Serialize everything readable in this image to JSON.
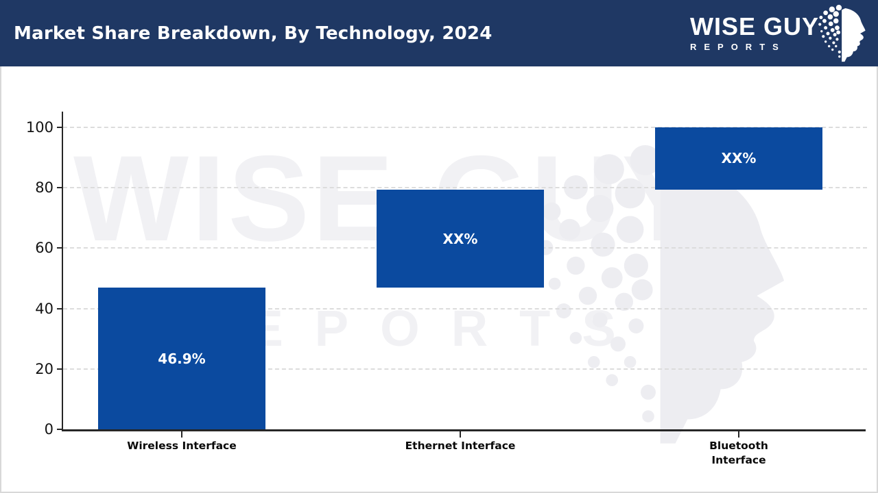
{
  "header": {
    "title": "Market Share Breakdown, By Technology, 2024",
    "logo": {
      "line1": "WISE GUY",
      "line2": "REPORTS",
      "face_icon": "dotted-head-profile-icon"
    }
  },
  "watermark": {
    "line1": "WISE GUY",
    "line2": "REPORTS",
    "face_icon": "dotted-head-profile-icon"
  },
  "chart_data": {
    "type": "bar",
    "subtype": "waterfall",
    "title": "Market Share Breakdown, By Technology, 2024",
    "categories": [
      "Wireless Interface",
      "Ethernet Interface",
      "Bluetooth Interface"
    ],
    "category_tick_labels": [
      "Wireless Interface",
      "Ethernet Interface",
      "Bluetooth\nInterface"
    ],
    "segments": [
      {
        "category": "Wireless Interface",
        "start": 0,
        "end": 46.9,
        "label": "46.9%"
      },
      {
        "category": "Ethernet Interface",
        "start": 46.9,
        "end": 79.4,
        "label": "XX%"
      },
      {
        "category": "Bluetooth Interface",
        "start": 79.4,
        "end": 100,
        "label": "XX%"
      }
    ],
    "xlabel": "",
    "ylabel": "",
    "ylim": [
      0,
      100
    ],
    "yticks": [
      0,
      20,
      40,
      60,
      80,
      100
    ],
    "grid": "horizontal dashed",
    "legend": "none",
    "bar_color": "#0b4a9f",
    "bar_label_color": "#ffffff",
    "gridline_color": "#dcdcdc",
    "axis_color": "#262626",
    "header_color": "#1f3864",
    "watermark_color": "#f1f1f4"
  }
}
